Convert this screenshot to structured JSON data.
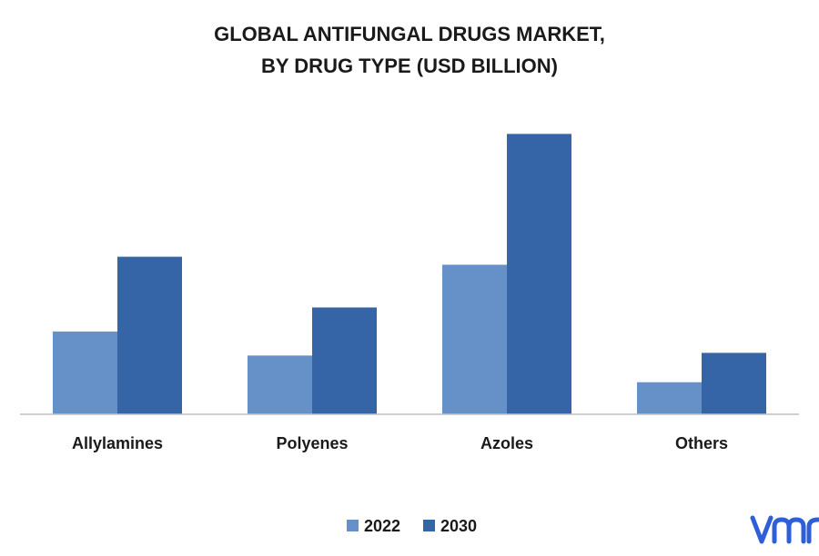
{
  "chart_data": {
    "type": "bar",
    "title": [
      "GLOBAL ANTIFUNGAL DRUGS MARKET,",
      "BY DRUG TYPE (USD BILLION)"
    ],
    "xlabel": "",
    "ylabel": "",
    "categories": [
      "Allylamines",
      "Polyenes",
      "Azoles",
      "Others"
    ],
    "series": [
      {
        "name": "2022",
        "color": "#6590c8",
        "values": [
          3.1,
          2.2,
          5.6,
          1.2
        ]
      },
      {
        "name": "2030",
        "color": "#3565a6",
        "values": [
          5.9,
          4.0,
          10.5,
          2.3
        ]
      }
    ],
    "ylim": [
      0,
      11.5
    ],
    "grid": false,
    "legend_position": "bottom-center",
    "axis_color": "#bfbfbf"
  },
  "logo": {
    "text": "vmr",
    "color": "#2f5fd6"
  }
}
